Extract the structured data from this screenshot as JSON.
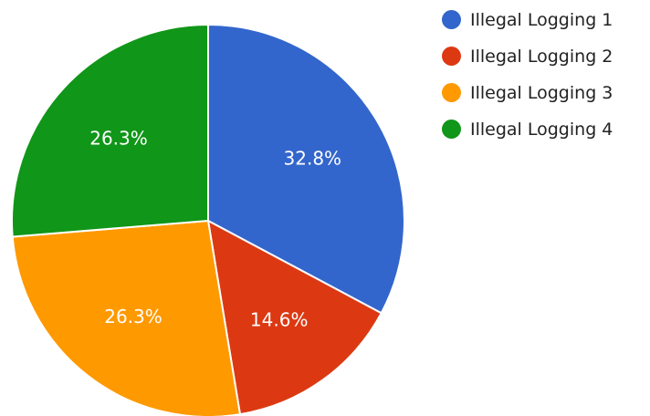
{
  "chart_data": {
    "type": "pie",
    "title": "",
    "categories": [
      "Illegal Logging 1",
      "Illegal Logging 2",
      "Illegal Logging 3",
      "Illegal Logging 4"
    ],
    "values": [
      32.8,
      14.6,
      26.3,
      26.3
    ],
    "labels": [
      "32.8%",
      "14.6%",
      "26.3%",
      "26.3%"
    ],
    "colors": [
      "#3366cc",
      "#dc3912",
      "#ff9900",
      "#109618"
    ],
    "start_angle": "12 o'clock",
    "direction": "clockwise",
    "legend_position": "right"
  },
  "legend": {
    "items": [
      {
        "label": "Illegal Logging 1",
        "color": "#3366cc"
      },
      {
        "label": "Illegal Logging 2",
        "color": "#dc3912"
      },
      {
        "label": "Illegal Logging 3",
        "color": "#ff9900"
      },
      {
        "label": "Illegal Logging 4",
        "color": "#109618"
      }
    ]
  }
}
